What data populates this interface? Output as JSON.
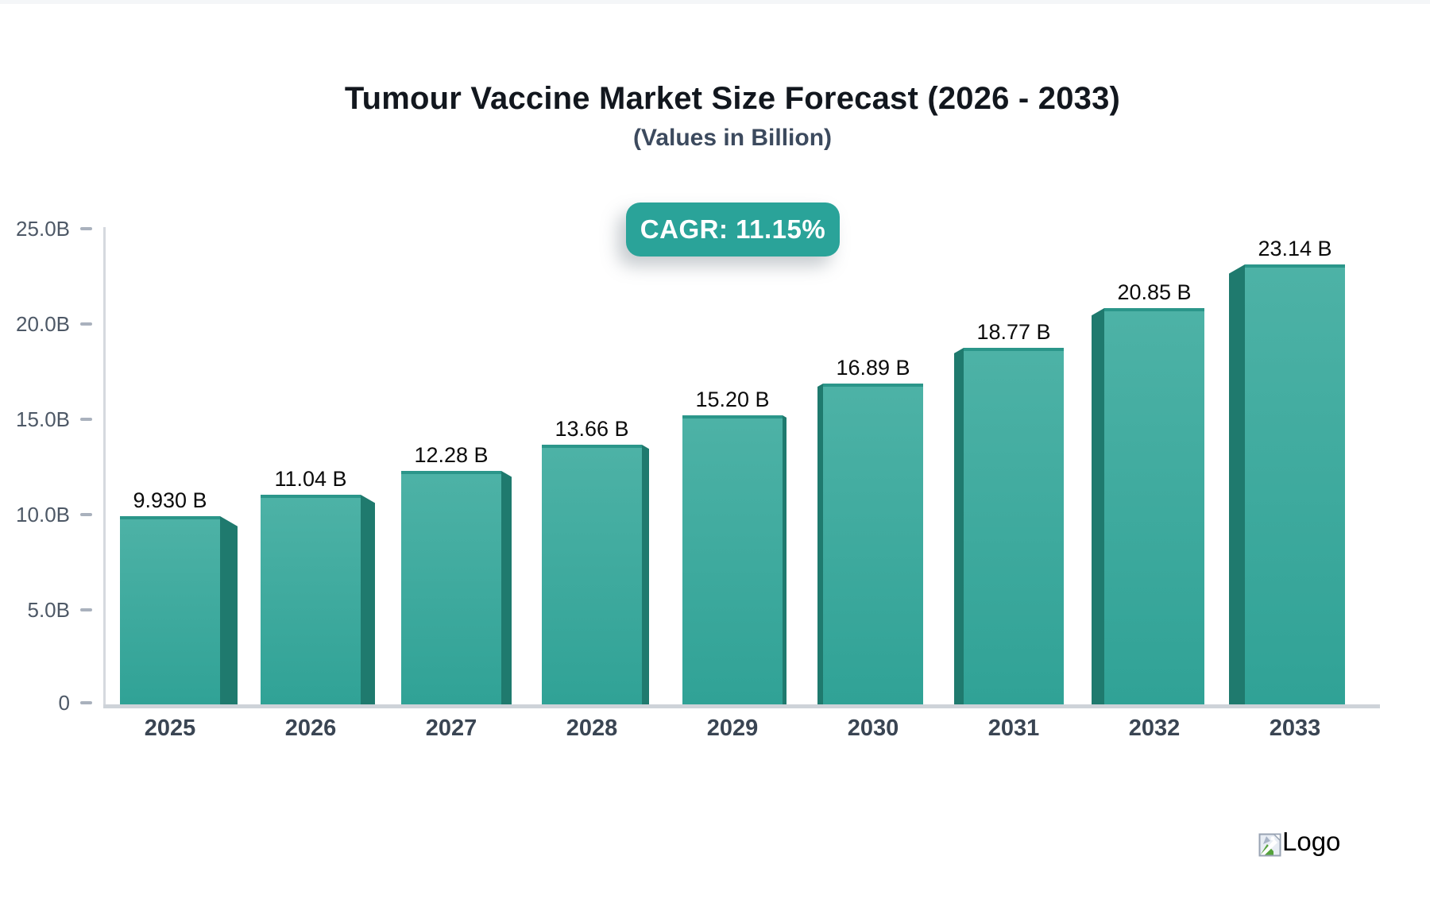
{
  "header": {
    "title": "Tumour Vaccine Market Size Forecast (2026 - 2033)",
    "subtitle": "(Values in Billion)",
    "cagr_badge": "CAGR: 11.15%"
  },
  "chart_data": {
    "type": "bar",
    "title": "Tumour Vaccine Market Size Forecast (2026 - 2033)",
    "subtitle": "(Values in Billion)",
    "cagr": "11.15%",
    "categories": [
      "2025",
      "2026",
      "2027",
      "2028",
      "2029",
      "2030",
      "2031",
      "2032",
      "2033"
    ],
    "values": [
      9.93,
      11.04,
      12.28,
      13.66,
      15.2,
      16.89,
      18.77,
      20.85,
      23.14
    ],
    "data_labels": [
      "9.930 B",
      "11.04 B",
      "12.28 B",
      "13.66 B",
      "15.20 B",
      "16.89 B",
      "18.77 B",
      "20.85 B",
      "23.14 B"
    ],
    "y_tick_labels": [
      "25.0B",
      "20.0B",
      "15.0B",
      "10.0B",
      "5.0B",
      "0"
    ],
    "ylim": [
      0,
      25
    ],
    "grid": false,
    "legend": "none",
    "unit": "Billion"
  },
  "colors": {
    "accent": "#2aa399",
    "bar_top": "#4db2a6",
    "bar_bottom": "#30a296",
    "bar_side": "#1f7a6e",
    "bar_edge": "#2b968a"
  },
  "footer": {
    "logo_alt": "Logo"
  }
}
